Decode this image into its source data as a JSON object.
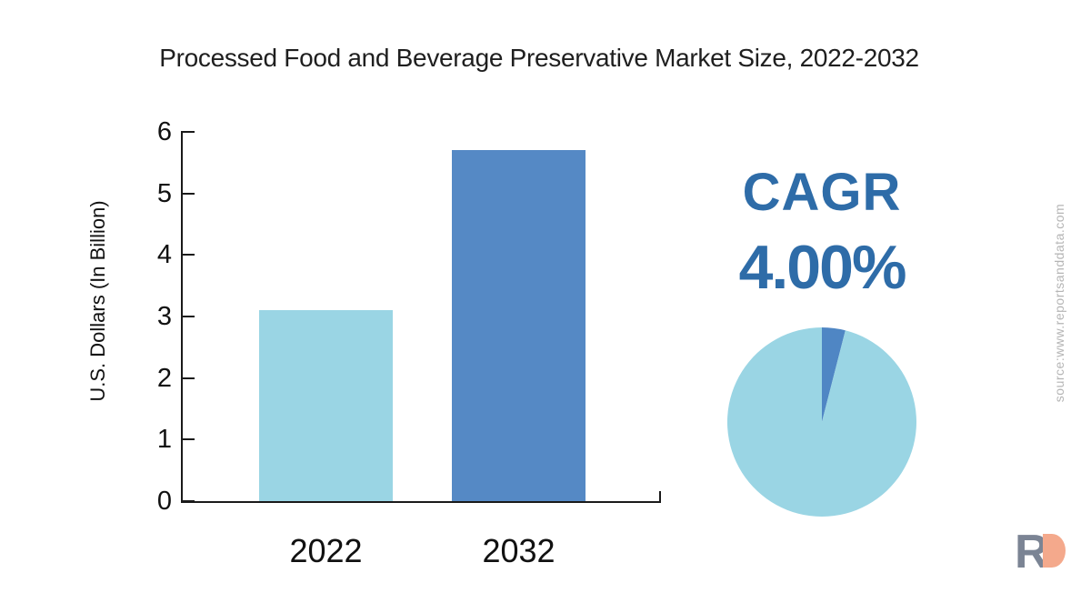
{
  "title": "Processed Food and Beverage Preservative Market Size, 2022-2032",
  "source_note": "source:www.reportsanddata.com",
  "cagr": {
    "label": "CAGR",
    "value": "4.00%"
  },
  "logo": {
    "letter": "R"
  },
  "colors": {
    "bar_2022": "#9ad5e4",
    "bar_2032": "#5589c5",
    "pie_body": "#9ad5e4",
    "pie_wedge": "#4f86c4",
    "cagr_text": "#2e6ca8",
    "axis": "#1a1a1a",
    "title_text": "#1f1f1f",
    "source_text": "#b5b5b5",
    "logo_letter": "#7b8494",
    "logo_mark": "#f4a98c"
  },
  "chart_data": [
    {
      "type": "bar",
      "title": "Processed Food and Beverage Preservative Market Size, 2022-2032",
      "categories": [
        "2022",
        "2032"
      ],
      "values": [
        3.1,
        5.7
      ],
      "xlabel": "",
      "ylabel": "U.S. Dollars (In Billion)",
      "ylim": [
        0,
        6
      ],
      "yticks": [
        0,
        1,
        2,
        3,
        4,
        5,
        6
      ],
      "grid": false,
      "legend": false,
      "bar_colors": [
        "#9ad5e4",
        "#5589c5"
      ]
    },
    {
      "type": "pie",
      "title": "CAGR 4.00%",
      "labels": [
        "CAGR 4.00%",
        "remainder"
      ],
      "values": [
        4,
        96
      ],
      "colors": [
        "#4f86c4",
        "#9ad5e4"
      ],
      "start_angle_deg": 0,
      "direction": "clockwise",
      "legend": false
    }
  ]
}
